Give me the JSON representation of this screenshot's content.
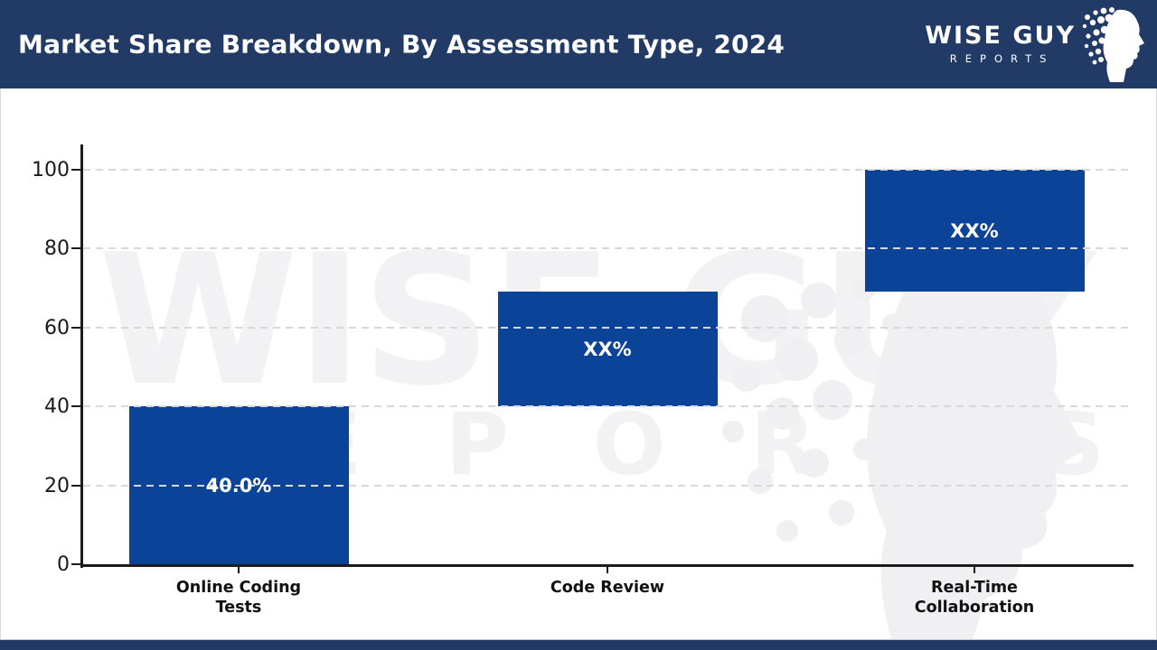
{
  "header": {
    "title": "Market Share Breakdown, By Assessment Type, 2024",
    "logo": {
      "name_top": "WISE GUY",
      "name_bottom": "REPORTS"
    }
  },
  "watermark": {
    "line1": "WISE GUY",
    "line2": "R E P O R T S"
  },
  "chart_data": {
    "type": "bar",
    "variant": "waterfall",
    "title": "Market Share Breakdown, By Assessment Type, 2024",
    "categories": [
      "Online Coding Tests",
      "Code Review",
      "Real-Time Collaboration"
    ],
    "category_label_lines": [
      [
        "Online Coding",
        "Tests"
      ],
      [
        "Code Review",
        ""
      ],
      [
        "Real-Time",
        "Collaboration"
      ]
    ],
    "segments": [
      {
        "category": "Online Coding Tests",
        "start": 0,
        "end": 40,
        "value": 40.0,
        "label": "40.0%"
      },
      {
        "category": "Code Review",
        "start": 40,
        "end": 69,
        "value": 29,
        "label": "XX%"
      },
      {
        "category": "Real-Time Collaboration",
        "start": 69,
        "end": 100,
        "value": 31,
        "label": "XX%"
      }
    ],
    "ylim": [
      0,
      100
    ],
    "yticks": [
      0,
      20,
      40,
      60,
      80,
      100
    ],
    "grid": {
      "horizontal": true,
      "style": "dashed"
    },
    "legend": "none",
    "bar_color": "#0b4398",
    "bar_label_color": "#ffffff"
  },
  "colors": {
    "header_bg": "#213a66",
    "footer_bg": "#213a66",
    "axis": "#1c1c1c",
    "grid": "#d8d8d8",
    "watermark": "#f2f2f4",
    "bar": "#0b4398"
  }
}
